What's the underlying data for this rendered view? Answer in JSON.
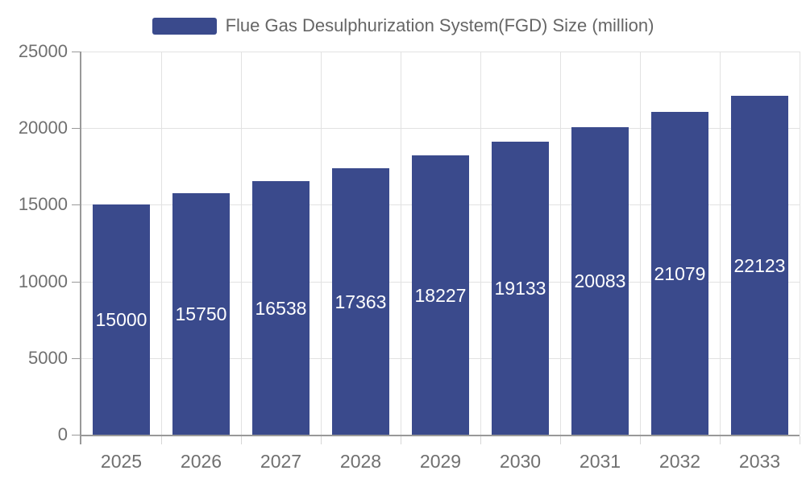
{
  "legend": {
    "label": "Flue Gas Desulphurization System(FGD) Size (million)"
  },
  "colors": {
    "bar": "#3A4A8C",
    "grid": "#E2E2E2",
    "axis": "#999999",
    "x_tick": "#D6D6D6",
    "axis_label": "#707070",
    "legend_text": "#666666",
    "bar_label": "#FFFFFF",
    "background": "#FFFFFF"
  },
  "chart_data": {
    "type": "bar",
    "title": "Flue Gas Desulphurization System(FGD) Size (million)",
    "series_name": "Flue Gas Desulphurization System(FGD) Size (million)",
    "categories": [
      "2025",
      "2026",
      "2027",
      "2028",
      "2029",
      "2030",
      "2031",
      "2032",
      "2033"
    ],
    "values": [
      15000,
      15750,
      16538,
      17363,
      18227,
      19133,
      20083,
      21079,
      22123
    ],
    "xlabel": "",
    "ylabel": "",
    "ylim": [
      0,
      25000
    ],
    "yticks": [
      0,
      5000,
      10000,
      15000,
      20000,
      25000
    ],
    "grid": true,
    "legend_position": "top",
    "bar_label_position": "inside-center"
  }
}
